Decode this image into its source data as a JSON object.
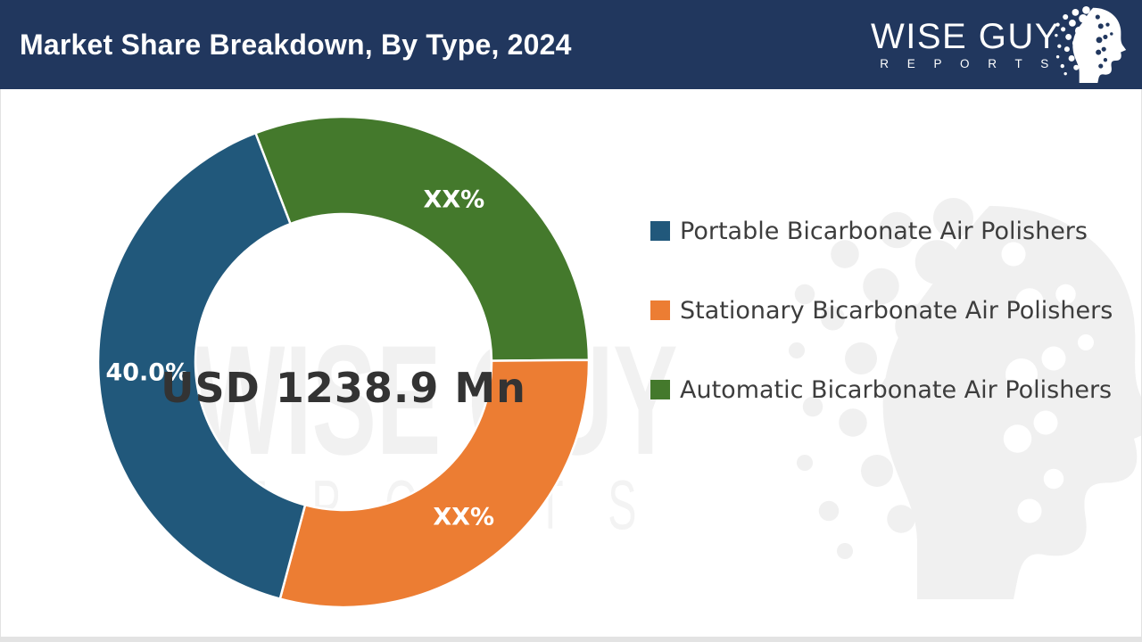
{
  "header": {
    "title": "Market Share Breakdown, By Type, 2024",
    "bg_color": "#21375E"
  },
  "logo": {
    "line1": "WISE GUY",
    "line2": "R E P O R T S"
  },
  "watermark": {
    "line1": "WISE GUY",
    "line2": "REPORTS"
  },
  "chart_data": {
    "type": "pie",
    "subtype": "donut",
    "title": "Market Share Breakdown, By Type, 2024",
    "center_label": "USD 1238.9 Mn",
    "legend_position": "right",
    "start_angle_css_deg": 339,
    "draw_order": [
      2,
      1,
      0
    ],
    "outer_radius": 275,
    "inner_radius": 166,
    "label_radius": 220,
    "segments": [
      {
        "name": "Portable Bicarbonate Air Polishers",
        "label": "40.0%",
        "value_pct": 40.0,
        "color": "#21587B"
      },
      {
        "name": "Stationary Bicarbonate Air Polishers",
        "label": "XX%",
        "value_pct": 29.3,
        "color": "#EC7D33"
      },
      {
        "name": "Automatic Bicarbonate Air Polishers",
        "label": "XX%",
        "value_pct": 30.7,
        "color": "#44792C"
      }
    ]
  }
}
